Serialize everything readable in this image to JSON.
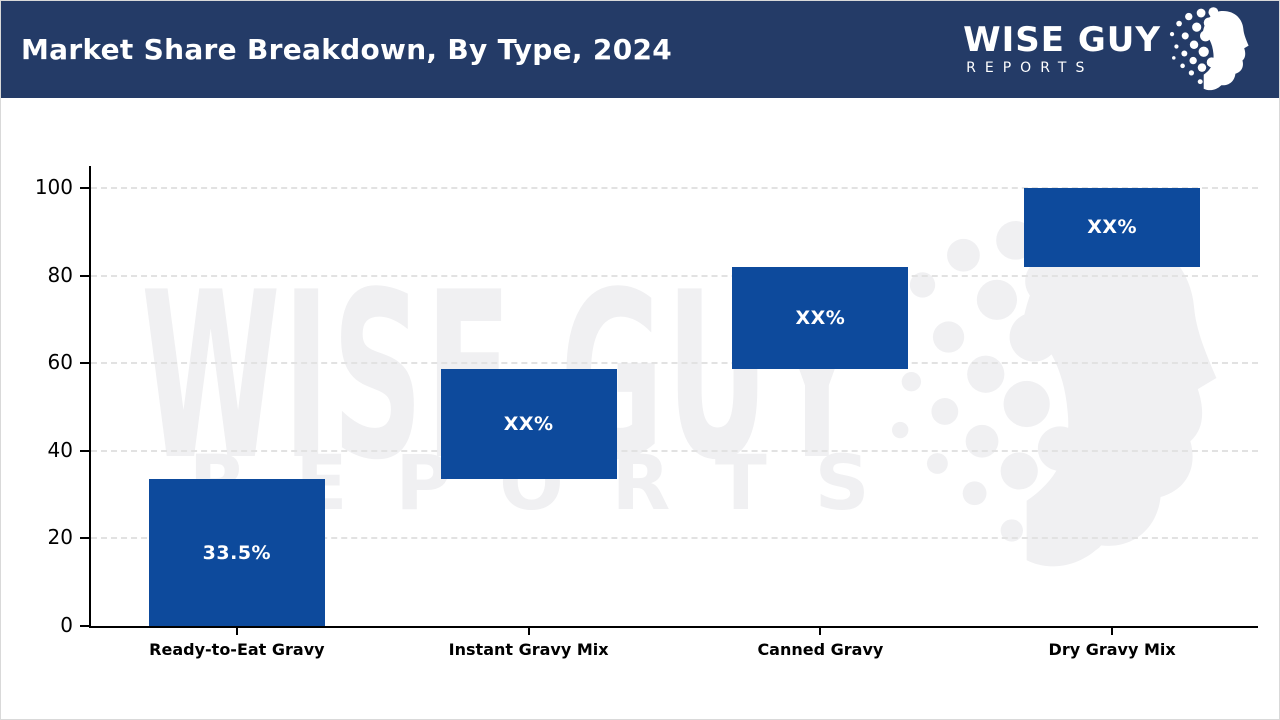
{
  "header": {
    "title": "Market Share Breakdown, By Type, 2024",
    "bg_color": "#243b67",
    "logo": {
      "line1": "WISE GUY",
      "line2": "REPORTS"
    }
  },
  "watermark": {
    "line1": "WISE GUY",
    "line2": "REPORTS"
  },
  "chart_data": {
    "type": "bar",
    "variant": "waterfall",
    "title": "Market Share Breakdown, By Type, 2024",
    "categories": [
      "Ready-to-Eat Gravy",
      "Instant Gravy Mix",
      "Canned Gravy",
      "Dry Gravy Mix"
    ],
    "segments": [
      {
        "category": "Ready-to-Eat Gravy",
        "start": 0,
        "end": 33.5,
        "label": "33.5%"
      },
      {
        "category": "Instant Gravy Mix",
        "start": 33.5,
        "end": 58.7,
        "label": "XX%"
      },
      {
        "category": "Canned Gravy",
        "start": 58.7,
        "end": 82.0,
        "label": "XX%"
      },
      {
        "category": "Dry Gravy Mix",
        "start": 82.0,
        "end": 100,
        "label": "XX%"
      }
    ],
    "yticks": [
      0,
      20,
      40,
      60,
      80,
      100
    ],
    "ylim": [
      0,
      105
    ],
    "grid": "horizontal-dashed",
    "legend": "none",
    "bar_color": "#0d4a9c",
    "bar_label_color": "#ffffff",
    "axis_color": "#000000",
    "gridline_color": "#e2e2e2"
  }
}
